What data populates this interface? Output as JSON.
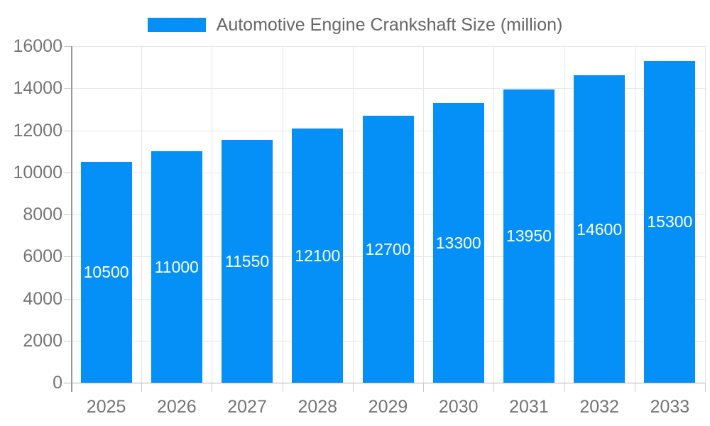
{
  "chart_data": {
    "type": "bar",
    "title": "Automotive Engine Crankshaft Size (million)",
    "categories": [
      "2025",
      "2026",
      "2027",
      "2028",
      "2029",
      "2030",
      "2031",
      "2032",
      "2033"
    ],
    "values": [
      10500,
      11000,
      11550,
      12100,
      12700,
      13300,
      13950,
      14600,
      15300
    ],
    "value_labels": [
      "10500",
      "11000",
      "11550",
      "12100",
      "12700",
      "13300",
      "13950",
      "14600",
      "15300"
    ],
    "xlabel": "",
    "ylabel": "",
    "ylim": [
      0,
      16000
    ],
    "yticks": [
      0,
      2000,
      4000,
      6000,
      8000,
      10000,
      12000,
      14000,
      16000
    ],
    "y_tick_labels": [
      "0",
      "2000",
      "4000",
      "6000",
      "8000",
      "10000",
      "12000",
      "14000",
      "16000"
    ],
    "legend_position": "top",
    "grid": true,
    "bar_label_position": "middle",
    "colors": {
      "bar": "#0590f8",
      "bar_label": "#ffffff",
      "axis_text": "#757575",
      "legend_text": "#666666",
      "grid_line": "#e6e6e6",
      "baseline": "#b3b3b3",
      "axis_line": "#999999",
      "tick": "#cccccc",
      "background": "#ffffff"
    }
  }
}
